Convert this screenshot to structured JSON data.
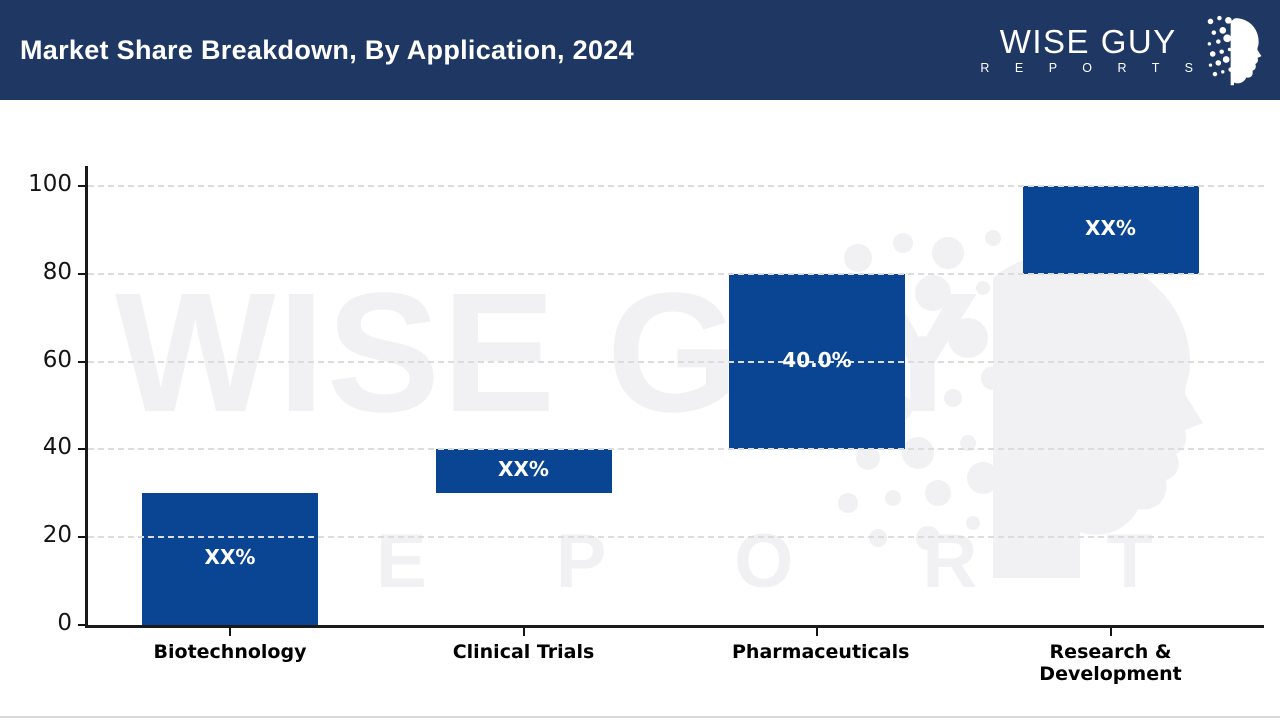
{
  "header": {
    "title": "Market Share Breakdown, By Application, 2024",
    "logo_line1": "WISE GUY",
    "logo_line2": "R E P O R T S"
  },
  "watermark": {
    "line1": "WISE GUY",
    "line2": "R E P O R T S"
  },
  "chart_data": {
    "type": "bar",
    "subtype": "floating-column-waterfall",
    "title": "Market Share Breakdown, By Application, 2024",
    "categories": [
      "Biotechnology",
      "Clinical Trials",
      "Pharmaceuticals",
      "Research & Development"
    ],
    "series": [
      {
        "name": "Market Share (%)",
        "segments": [
          {
            "category": "Biotechnology",
            "from": 0,
            "to": 30,
            "label": "XX%"
          },
          {
            "category": "Clinical Trials",
            "from": 30,
            "to": 40,
            "label": "XX%"
          },
          {
            "category": "Pharmaceuticals",
            "from": 40,
            "to": 80,
            "label": "40.0%"
          },
          {
            "category": "Research & Development",
            "from": 80,
            "to": 100,
            "label": "XX%"
          }
        ]
      }
    ],
    "xlabel": "",
    "ylabel": "",
    "yticks": [
      0,
      20,
      40,
      60,
      80,
      100
    ],
    "ylim": [
      0,
      104
    ],
    "grid": "horizontal-dashed",
    "legend": "none",
    "bar_color": "#0a4593",
    "bar_label_color": "#ffffff",
    "axis_color": "#1a1a1a",
    "grid_color": "#dcdcdc",
    "header_color": "#1f3763",
    "watermark_color": "#f1f1f4"
  }
}
